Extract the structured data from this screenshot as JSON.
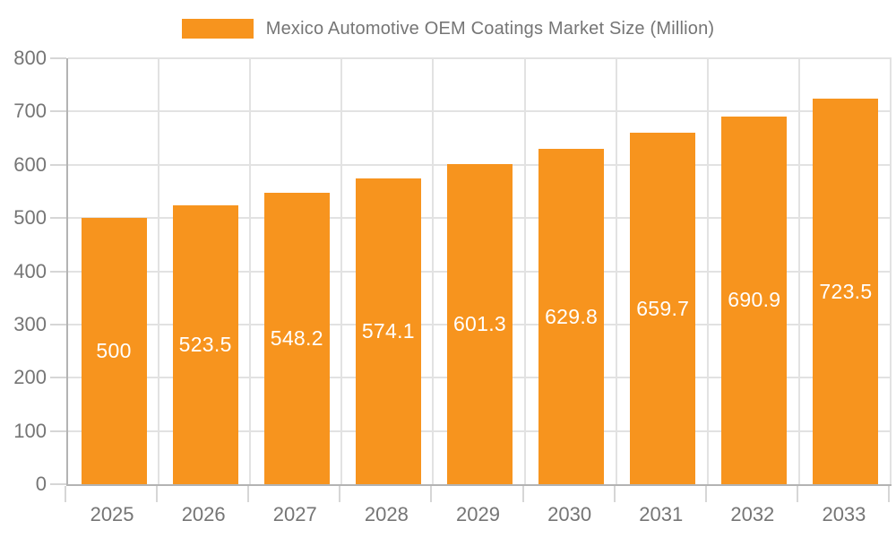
{
  "legend": {
    "label": "Mexico Automotive OEM Coatings Market Size (Million)"
  },
  "chart_data": {
    "type": "bar",
    "title": "Mexico Automotive OEM Coatings Market Size (Million)",
    "categories": [
      "2025",
      "2026",
      "2027",
      "2028",
      "2029",
      "2030",
      "2031",
      "2032",
      "2033"
    ],
    "values": [
      500,
      523.5,
      548.2,
      574.1,
      601.3,
      629.8,
      659.7,
      690.9,
      723.5
    ],
    "value_labels": [
      "500",
      "523.5",
      "548.2",
      "574.1",
      "601.3",
      "629.8",
      "659.7",
      "690.9",
      "723.5"
    ],
    "xlabel": "",
    "ylabel": "",
    "ylim": [
      0,
      800
    ],
    "ytick_interval": 100,
    "ytick_labels": [
      "0",
      "100",
      "200",
      "300",
      "400",
      "500",
      "600",
      "700",
      "800"
    ],
    "grid": true,
    "legend_position": "top",
    "colors": {
      "bar": "#f7941e",
      "bar_label": "#ffffff",
      "axis_line": "#b3b3b3",
      "gridline": "#e2e2e2",
      "tick": "#d6d6d6",
      "axis_text": "#757575"
    }
  }
}
